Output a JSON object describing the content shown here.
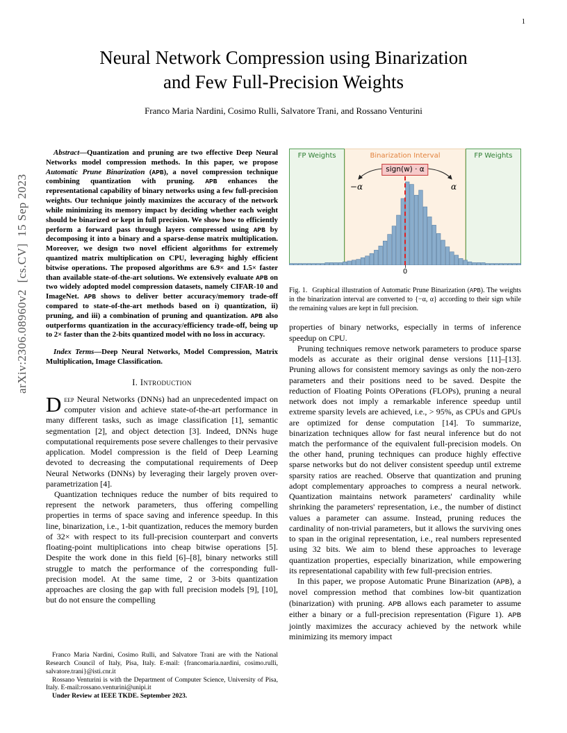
{
  "page": {
    "number": "1"
  },
  "arxiv_stamp": "arXiv:2306.08960v2  [cs.CV]  15 Sep 2023",
  "header": {
    "title_line1": "Neural Network Compression using Binarization",
    "title_line2": "and Few Full-Precision Weights",
    "authors": "Franco Maria Nardini, Cosimo Rulli, Salvatore Trani, and Rossano Venturini"
  },
  "abstract": {
    "segments": [
      {
        "t": "Abstract",
        "c": "bi"
      },
      {
        "t": "—Quantization and pruning are two effective Deep Neural Networks model compression methods. In this paper, we propose "
      },
      {
        "t": "Automatic Prune Binarization",
        "c": "i"
      },
      {
        "t": " ("
      },
      {
        "t": "APB",
        "c": "tt"
      },
      {
        "t": "), a novel compression technique combining quantization with pruning. "
      },
      {
        "t": "APB",
        "c": "tt"
      },
      {
        "t": " enhances the representational capability of binary networks using a few full-precision weights. Our technique jointly maximizes the accuracy of the network while minimizing its memory impact by deciding whether each weight should be binarized or kept in full precision. We show how to efficiently perform a forward pass through layers compressed using "
      },
      {
        "t": "APB",
        "c": "tt"
      },
      {
        "t": " by decomposing it into a binary and a sparse-dense matrix multiplication. Moreover, we design two novel efficient algorithms for extremely quantized matrix multiplication on CPU, leveraging highly efficient bitwise operations. The proposed algorithms are 6.9× and 1.5× faster than available state-of-the-art solutions. We extensively evaluate "
      },
      {
        "t": "APB",
        "c": "tt"
      },
      {
        "t": " on two widely adopted model compression datasets, namely CIFAR-10 and ImageNet. "
      },
      {
        "t": "APB",
        "c": "tt"
      },
      {
        "t": " shows to deliver better accuracy/memory trade-off compared to state-of-the-art methods based on i) quantization, ii) pruning, and iii) a combination of pruning and quantization. "
      },
      {
        "t": "APB",
        "c": "tt"
      },
      {
        "t": " also outperforms quantization in the accuracy/efficiency trade-off, being up to 2× faster than the 2-bits quantized model with no loss in accuracy."
      }
    ]
  },
  "index_terms": {
    "segments": [
      {
        "t": "Index Terms",
        "c": "bi"
      },
      {
        "t": "—Deep Neural Networks, Model Compression, Matrix Multiplication, Image Classification."
      }
    ]
  },
  "introduction": {
    "heading": "I. Introduction",
    "paragraph1": [
      {
        "t": "D",
        "c": "dc"
      },
      {
        "t": "eep",
        "c": "sc"
      },
      {
        "t": " Neural Networks (DNNs) had an unprecedented impact on computer vision and achieve state-of-the-art performance in many different tasks, such as image classification [1], semantic segmentation [2], and object detection [3]. Indeed, DNNs huge computational requirements pose severe challenges to their pervasive application. Model compression is the field of Deep Learning devoted to decreasing the computational requirements of Deep Neural Networks (DNNs) by leveraging their largely proven over-parametrization [4]."
      }
    ],
    "paragraph2": [
      {
        "t": "Quantization techniques reduce the number of bits required to represent the network parameters, thus offering compelling properties in terms of space saving and inference speedup. In this line, binarization, i.e., 1-bit quantization, reduces the memory burden of 32× with respect to its full-precision counterpart and converts floating-point multiplications into cheap bitwise operations [5]. Despite the work done in this field [6]–[8], binary networks still struggle to match the performance of the corresponding full-precision model. At the same time, 2 or 3-bits quantization approaches are closing the gap with full precision models [9], [10], but do not ensure the compelling"
      }
    ]
  },
  "right_column": {
    "paragraph1": [
      {
        "t": "properties of binary networks, especially in terms of inference speedup on CPU."
      }
    ],
    "paragraph2": [
      {
        "t": "Pruning techniques remove network parameters to produce sparse models as accurate as their original dense versions [11]–[13]. Pruning allows for consistent memory savings as only the non-zero parameters and their positions need to be saved. Despite the reduction of Floating Points OPerations (FLOPs), pruning a neural network does not imply a remarkable inference speedup until extreme sparsity levels are achieved, i.e., > 95%, as CPUs and GPUs are optimized for dense computation [14]. To summarize, binarization techniques allow for fast neural inference but do not match the performance of the equivalent full-precision models. On the other hand, pruning techniques can produce highly effective sparse networks but do not deliver consistent speedup until extreme sparsity ratios are reached. Observe that quantization and pruning adopt complementary approaches to compress a neural network. Quantization maintains network parameters' cardinality while shrinking the parameters' representation, i.e., the number of distinct values a parameter can assume. Instead, pruning reduces the cardinality of non-trivial parameters, but it allows the surviving ones to span in the original representation, i.e., real numbers represented using 32 bits. We aim to blend these approaches to leverage quantization properties, especially binarization, while empowering its representational capability with few full-precision entries."
      }
    ],
    "paragraph3": [
      {
        "t": "In this paper, we propose Automatic Prune Binarization ("
      },
      {
        "t": "APB",
        "c": "tt"
      },
      {
        "t": "), a novel compression method that combines low-bit quantization (binarization) with pruning. "
      },
      {
        "t": "APB",
        "c": "tt"
      },
      {
        "t": " allows each parameter to assume either a binary or a full-precision representation (Figure 1). "
      },
      {
        "t": "APB",
        "c": "tt"
      },
      {
        "t": " jointly maximizes the accuracy achieved by the network while minimizing its memory impact"
      }
    ]
  },
  "figure": {
    "caption": [
      {
        "t": "Fig. 1.",
        "c": "fignum"
      },
      {
        "t": "Graphical illustration of Automatic Prune Binarization ("
      },
      {
        "t": "APB",
        "c": "tt"
      },
      {
        "t": "). The weights in the binarization interval are converted to {−α, α} according to their sign while the remaining values are kept in full precision."
      }
    ],
    "chart_data": {
      "type": "bar",
      "title": "",
      "xlabel": "",
      "ylabel": "",
      "x_tick_labels": [
        "0"
      ],
      "regions": {
        "left": {
          "label": "FP Weights"
        },
        "middle": {
          "label": "Binarization Interval"
        },
        "right": {
          "label": "FP Weights"
        }
      },
      "annotation": "sign(w) · α",
      "alpha_left": "−α",
      "alpha_right": "α",
      "values": [
        2,
        2,
        2,
        2,
        2,
        2,
        2,
        2,
        3,
        3,
        3,
        3,
        4,
        5,
        6,
        7,
        9,
        11,
        14,
        18,
        23,
        29,
        37,
        47,
        60,
        80,
        100,
        97,
        84,
        90,
        70,
        58,
        48,
        38,
        30,
        22,
        16,
        12,
        8,
        6,
        4,
        3,
        3,
        3,
        2,
        2,
        2,
        2,
        2,
        2,
        2,
        2
      ],
      "colors": {
        "fp_region_bg": "#ecf5ea",
        "fp_region_border": "#55a055",
        "fp_label": "#2e7d32",
        "interval_bg": "#fdf1e3",
        "interval_border": "#eed3b2",
        "interval_label": "#e2813c",
        "annotation_bg": "#f6caca",
        "annotation_border": "#c63939",
        "bar_fill": "#8aadcc",
        "bar_stroke": "#5a80a5",
        "threshold_line": "#e02020"
      }
    }
  },
  "footnotes": {
    "fn1": "Franco Maria Nardini, Cosimo Rulli, and Salvatore Trani are with the National Research Council of Italy, Pisa, Italy. E-mail: {francomaria.nardini, cosimo.rulli, salvatore.trani}@isti.cnr.it",
    "fn2": "Rossano Venturini is with the Department of Computer Science, University of Pisa, Italy. E-mail:rossano.venturini@unipi.it",
    "fn3": "Under Review at IEEE TKDE. September 2023."
  }
}
